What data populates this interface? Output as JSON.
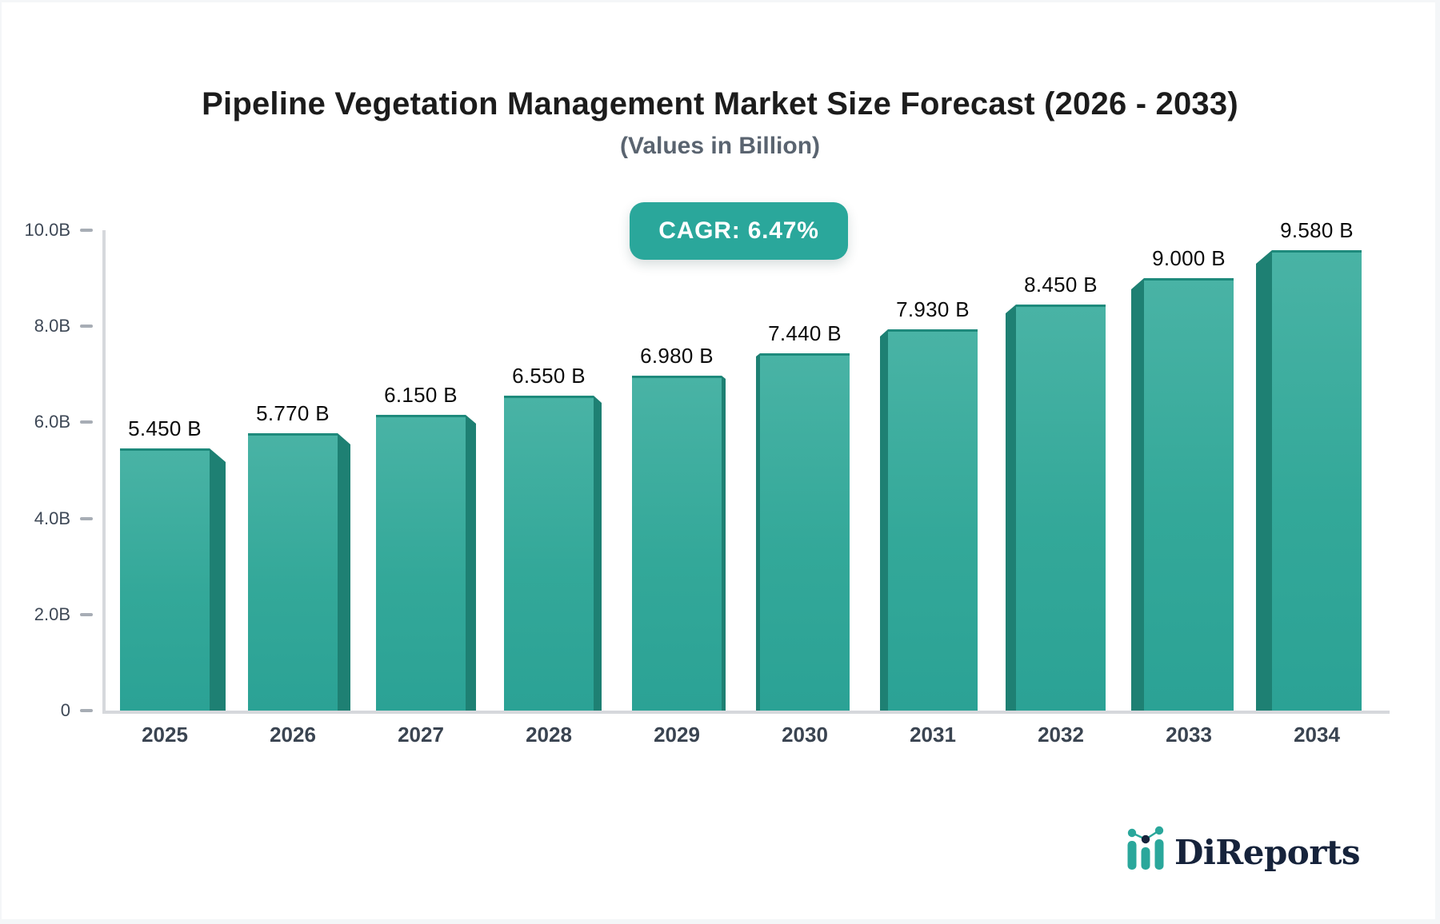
{
  "header": {
    "title": "Pipeline Vegetation Management Market Size Forecast (2026 - 2033)",
    "subtitle": "(Values in Billion)"
  },
  "badge": {
    "label": "CAGR: 6.47%",
    "bg_color": "#2aa79b",
    "text_color": "#ffffff"
  },
  "logo": {
    "text": "DiReports",
    "icon": "mini-bar-chart-icon",
    "text_color": "#16233b",
    "accent_color": "#2aa79b"
  },
  "chart_data": {
    "type": "bar",
    "title": "Pipeline Vegetation Management Market Size Forecast (2026 - 2033)",
    "subtitle": "(Values in Billion)",
    "categories": [
      "2025",
      "2026",
      "2027",
      "2028",
      "2029",
      "2030",
      "2031",
      "2032",
      "2033",
      "2034"
    ],
    "values": [
      5.45,
      5.77,
      6.15,
      6.55,
      6.98,
      7.44,
      7.93,
      8.45,
      9.0,
      9.58
    ],
    "value_labels": [
      "5.450 B",
      "5.770 B",
      "6.150 B",
      "6.550 B",
      "6.980 B",
      "7.440 B",
      "7.930 B",
      "8.450 B",
      "9.000 B",
      "9.580 B"
    ],
    "unit": "Billion",
    "cagr": "6.47%",
    "xlabel": "",
    "ylabel": "",
    "ylim": [
      0,
      10
    ],
    "y_tick_labels": [
      "10.0B",
      "8.0B",
      "6.0B",
      "4.0B",
      "2.0B",
      "0"
    ],
    "y_tick_values": [
      10,
      8,
      6,
      4,
      2,
      0
    ],
    "grid": false,
    "legend": "none",
    "bar_color_top": "#49b3a5",
    "bar_color_bottom": "#2ba295",
    "bar_top_edge_color": "#1e8a7c",
    "bar_side_color": "#1e8073",
    "axis_color": "#d6d8dc",
    "tick_color": "#a7adb5"
  }
}
